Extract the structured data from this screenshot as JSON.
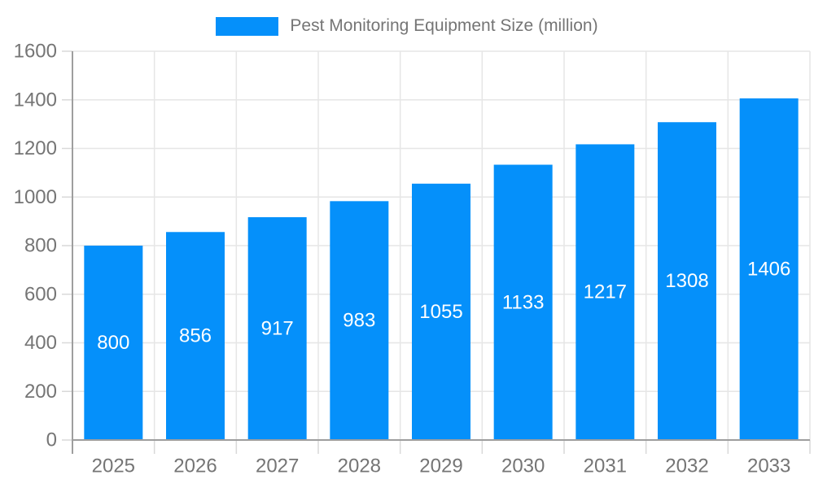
{
  "chart_data": {
    "type": "bar",
    "title": "Pest Monitoring Equipment Size (million)",
    "categories": [
      "2025",
      "2026",
      "2027",
      "2028",
      "2029",
      "2030",
      "2031",
      "2032",
      "2033"
    ],
    "values": [
      800,
      856,
      917,
      983,
      1055,
      1133,
      1217,
      1308,
      1406
    ],
    "xlabel": "",
    "ylabel": "",
    "ylim": [
      0,
      1600
    ],
    "yticks": [
      0,
      200,
      400,
      600,
      800,
      1000,
      1200,
      1400,
      1600
    ],
    "grid": true,
    "legend_position": "top-center",
    "value_labels": "inside-middle",
    "colors": {
      "bar": "#0590fa",
      "value_label": "#ffffff",
      "axis_text": "#757575",
      "grid_line": "#e6e6e6",
      "tick_line": "#d9d9d9",
      "axis_line": "#9e9e9e",
      "background": "#ffffff"
    }
  }
}
